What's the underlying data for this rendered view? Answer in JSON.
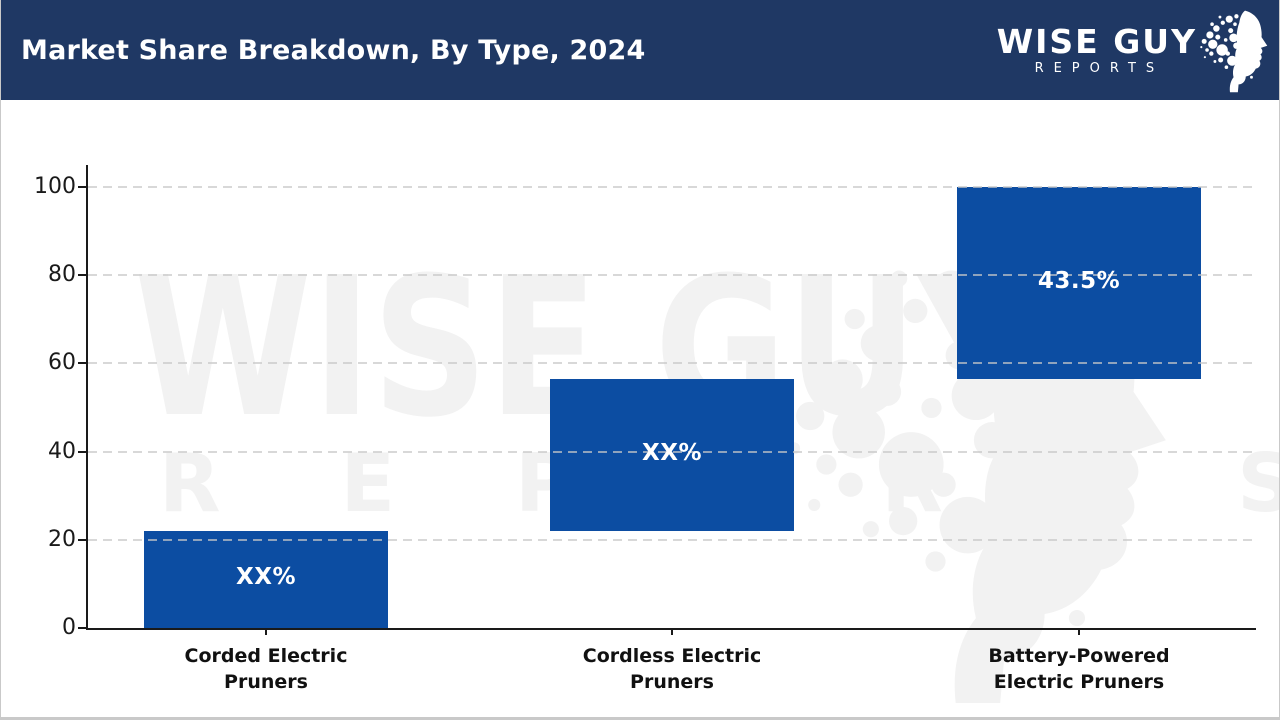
{
  "header": {
    "title": "Market Share Breakdown, By Type, 2024",
    "logo": {
      "line1": "WISE GUY",
      "line2": "REPORTS"
    },
    "bg_color": "#1F3864"
  },
  "watermark": {
    "line1": "WISE GUY",
    "line2": "R E P O R T S"
  },
  "chart_data": {
    "type": "bar",
    "subtype": "floating-segment-breakdown",
    "title": "Market Share Breakdown, By Type, 2024",
    "categories": [
      "Corded Electric Pruners",
      "Cordless Electric Pruners",
      "Battery-Powered Electric Pruners"
    ],
    "category_lines": [
      [
        "Corded Electric",
        "Pruners"
      ],
      [
        "Cordless Electric",
        "Pruners"
      ],
      [
        "Battery-Powered",
        "Electric Pruners"
      ]
    ],
    "starts": [
      0,
      22,
      56.5
    ],
    "values": [
      22,
      34.5,
      43.5
    ],
    "bar_labels": [
      "XX%",
      "XX%",
      "43.5%"
    ],
    "xlabel": "",
    "ylabel": "",
    "ylim": [
      0,
      105
    ],
    "yticks": [
      0,
      20,
      40,
      60,
      80,
      100
    ],
    "grid": "horizontal-dashed-over-bars",
    "legend": "none",
    "bar_color": "#0C4DA2",
    "bar_label_color": "#ffffff",
    "axis_color": "#1a1a1a",
    "gridline_color": "#d6d6d6"
  }
}
